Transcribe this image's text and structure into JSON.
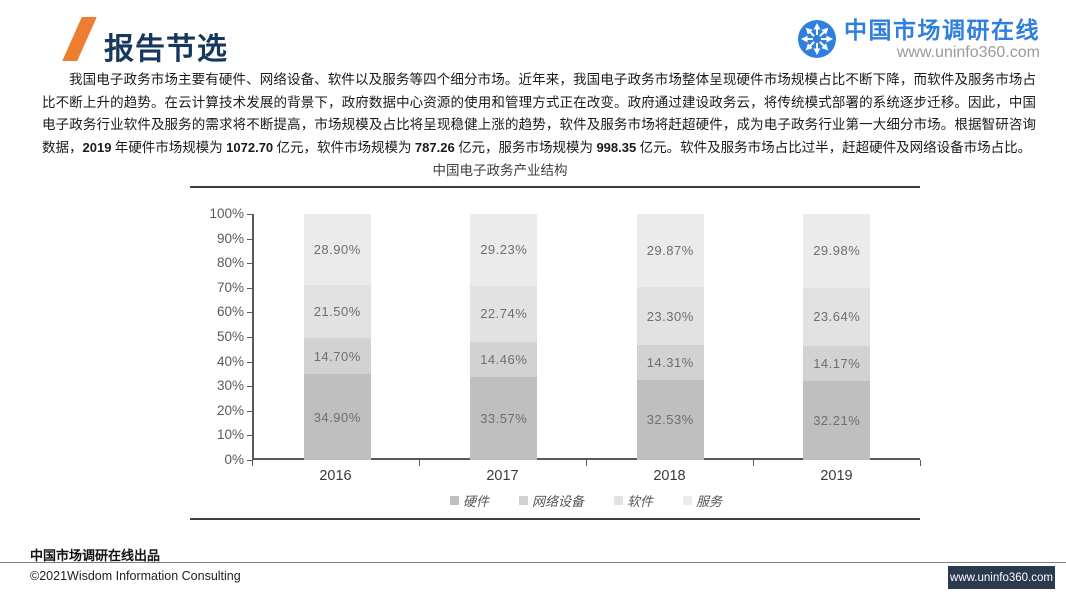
{
  "header": {
    "title": "报告节选",
    "logo_name": "中国市场调研在线",
    "logo_url": "www.uninfo360.com"
  },
  "paragraph": {
    "segments": [
      {
        "text": "我国电子政务市场主要有硬件、网络设备、软件以及服务等四个细分市场。近年来，我国电子政务市场整体呈现硬件市场规模占比不断下降，而软件及服务市场占比不断上升的趋势。在云计算技术发展的背景下，政府数据中心资源的使用和管理方式正在改变。政府通过建设政务云，将传统模式部署的系统逐步迁移。因此，中国电子政务行业软件及服务的需求将不断提高，市场规模及占比将呈现稳健上涨的趋势，软件及服务市场将赶超硬件，成为电子政务行业第一大细分市场。根据智研咨询数据，",
        "bold": false
      },
      {
        "text": "2019",
        "bold": true
      },
      {
        "text": " 年硬件市场规模为 ",
        "bold": false
      },
      {
        "text": "1072.70",
        "bold": true
      },
      {
        "text": " 亿元，软件市场规模为 ",
        "bold": false
      },
      {
        "text": "787.26",
        "bold": true
      },
      {
        "text": " 亿元，服务市场规模为 ",
        "bold": false
      },
      {
        "text": "998.35",
        "bold": true
      },
      {
        "text": " 亿元。软件及服务市场占比过半，赶超硬件及网络设备市场占比。",
        "bold": false
      }
    ]
  },
  "chart_data": {
    "type": "bar",
    "stacked": true,
    "title": "中国电子政务产业结构",
    "categories": [
      "2016",
      "2017",
      "2018",
      "2019"
    ],
    "series": [
      {
        "name": "硬件",
        "color": "#bfbfbf",
        "values": [
          34.9,
          33.57,
          32.53,
          32.21
        ]
      },
      {
        "name": "网络设备",
        "color": "#d2d2d2",
        "values": [
          14.7,
          14.46,
          14.31,
          14.17
        ]
      },
      {
        "name": "软件",
        "color": "#e2e2e2",
        "values": [
          21.5,
          22.74,
          23.3,
          23.64
        ]
      },
      {
        "name": "服务",
        "color": "#ebebeb",
        "values": [
          28.9,
          29.23,
          29.87,
          29.98
        ]
      }
    ],
    "y_ticks": [
      "100%",
      "90%",
      "80%",
      "70%",
      "60%",
      "50%",
      "40%",
      "30%",
      "20%",
      "10%",
      "0%"
    ],
    "ylim": [
      0,
      100
    ],
    "value_suffix": "%",
    "grid": false,
    "legend_position": "bottom"
  },
  "footer": {
    "producer": "中国市场调研在线出品",
    "copyright": "©2021Wisdom Information Consulting",
    "website": "www.uninfo360.com"
  },
  "colors": {
    "accent_orange": "#ED7D31",
    "title_navy": "#17375E",
    "logo_blue": "#2F80DE",
    "footer_box_navy": "#2B3A4E",
    "axis_gray": "#595959"
  }
}
